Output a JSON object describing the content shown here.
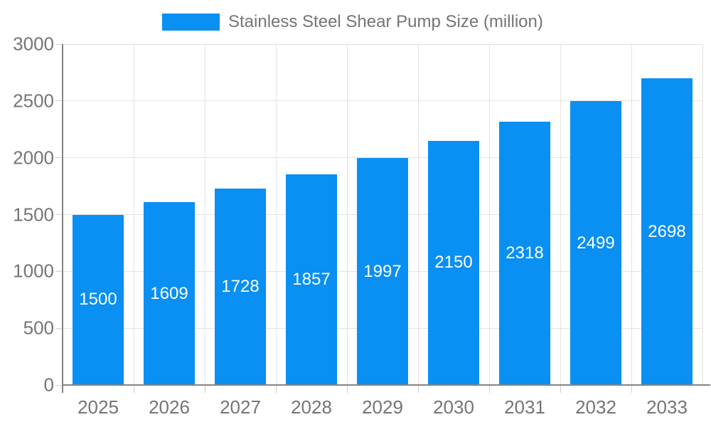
{
  "legend": {
    "label": "Stainless Steel Shear Pump Size (million)"
  },
  "colors": {
    "bar": "#0a8ff2",
    "axis_text": "#757575",
    "gridline": "#e3e3e3",
    "axis_line": "#848484",
    "tick": "#cfcfcf",
    "value_label": "#ffffff"
  },
  "chart_data": {
    "type": "bar",
    "categories": [
      "2025",
      "2026",
      "2027",
      "2028",
      "2029",
      "2030",
      "2031",
      "2032",
      "2033"
    ],
    "values": [
      1500,
      1609,
      1728,
      1857,
      1997,
      2150,
      2318,
      2499,
      2698
    ],
    "legend": "Stainless Steel Shear Pump Size (million)",
    "xlabel": "",
    "ylabel": "",
    "ylim": [
      0,
      3000
    ],
    "yticks": [
      0,
      500,
      1000,
      1500,
      2000,
      2500,
      3000
    ],
    "grid": true,
    "legend_position": "top",
    "bar_value_labels": true
  }
}
